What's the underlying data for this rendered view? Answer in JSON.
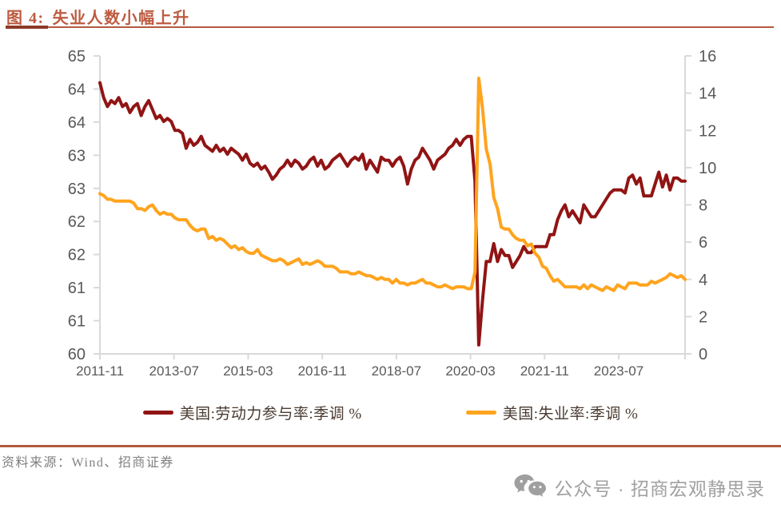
{
  "figure": {
    "label": "图 4:",
    "title": "失业人数小幅上升"
  },
  "source": {
    "text": "资料来源：Wind、招商证券"
  },
  "watermark": {
    "icon": "wechat-icon",
    "text": "公众号 · 招商宏观静思录"
  },
  "colors": {
    "title": "#BC5B40",
    "title_underline_dark": "#8C3A28",
    "title_underline_light": "#B25A3E",
    "separator": "#B25A3E",
    "series_participation": "#911414",
    "series_unemployment": "#FFA41E",
    "axis_text": "#595959",
    "axis_line": "#D9D9D9",
    "source_text": "#808080",
    "watermark_text": "#A0A0A0"
  },
  "chart_data": {
    "type": "line",
    "title": "失业人数小幅上升",
    "start_month": "2011-11",
    "frequency": "monthly",
    "legend_position": "bottom",
    "grid": false,
    "x_tick_labels": [
      "2011-11",
      "2013-07",
      "2015-03",
      "2016-11",
      "2018-07",
      "2020-03",
      "2021-11",
      "2023-07"
    ],
    "left_axis": {
      "min": 60,
      "max": 65,
      "tick_labels": [
        "65",
        "64",
        "64",
        "63",
        "63",
        "62",
        "62",
        "61",
        "61",
        "60"
      ]
    },
    "right_axis": {
      "min": 0,
      "max": 16,
      "tick_labels": [
        "16",
        "14",
        "12",
        "10",
        "8",
        "6",
        "4",
        "2",
        "0"
      ]
    },
    "series": [
      {
        "name": "美国:劳动力参与率:季调 %",
        "axis": "left",
        "color": "#911414",
        "values": [
          64.55,
          64.3,
          64.15,
          64.25,
          64.2,
          64.3,
          64.15,
          64.2,
          64.05,
          64.15,
          64.2,
          64.0,
          64.15,
          64.25,
          64.1,
          63.95,
          64.0,
          63.9,
          63.95,
          63.9,
          63.75,
          63.75,
          63.7,
          63.45,
          63.6,
          63.5,
          63.55,
          63.65,
          63.5,
          63.45,
          63.4,
          63.5,
          63.4,
          63.45,
          63.35,
          63.45,
          63.4,
          63.35,
          63.25,
          63.35,
          63.2,
          63.15,
          63.2,
          63.1,
          63.15,
          63.05,
          62.93,
          63.0,
          63.1,
          63.15,
          63.25,
          63.15,
          63.25,
          63.2,
          63.1,
          63.15,
          63.25,
          63.3,
          63.15,
          63.25,
          63.1,
          63.15,
          63.25,
          63.3,
          63.35,
          63.25,
          63.15,
          63.25,
          63.3,
          63.25,
          63.35,
          63.1,
          63.25,
          63.15,
          63.05,
          63.3,
          63.25,
          63.25,
          63.15,
          63.25,
          63.3,
          63.15,
          62.85,
          63.1,
          63.25,
          63.3,
          63.45,
          63.35,
          63.25,
          63.1,
          63.25,
          63.3,
          63.35,
          63.45,
          63.5,
          63.6,
          63.5,
          63.6,
          63.65,
          63.65,
          62.9,
          60.15,
          60.9,
          61.55,
          61.55,
          61.85,
          61.55,
          61.75,
          61.65,
          61.65,
          61.45,
          61.55,
          61.65,
          61.8,
          61.7,
          61.7,
          61.8,
          61.8,
          61.8,
          61.8,
          62.0,
          62.0,
          62.25,
          62.4,
          62.5,
          62.3,
          62.4,
          62.3,
          62.2,
          62.5,
          62.4,
          62.3,
          62.3,
          62.4,
          62.5,
          62.6,
          62.7,
          62.75,
          62.75,
          62.75,
          62.7,
          62.95,
          63.0,
          62.85,
          62.95,
          62.65,
          62.65,
          62.65,
          62.85,
          63.05,
          62.8,
          63.0,
          62.75,
          62.95,
          62.95,
          62.9,
          62.9
        ]
      },
      {
        "name": "美国:失业率:季调 %",
        "axis": "right",
        "color": "#FFA41E",
        "values": [
          8.6,
          8.5,
          8.3,
          8.3,
          8.2,
          8.2,
          8.2,
          8.2,
          8.2,
          8.1,
          7.8,
          7.8,
          7.7,
          7.9,
          8.0,
          7.7,
          7.5,
          7.6,
          7.5,
          7.5,
          7.3,
          7.2,
          7.2,
          7.2,
          6.9,
          6.7,
          6.6,
          6.7,
          6.7,
          6.2,
          6.3,
          6.1,
          6.2,
          6.1,
          5.9,
          5.7,
          5.8,
          5.6,
          5.7,
          5.5,
          5.4,
          5.4,
          5.6,
          5.3,
          5.2,
          5.1,
          5.0,
          5.0,
          5.1,
          5.0,
          4.8,
          4.9,
          5.0,
          5.1,
          4.8,
          4.9,
          4.8,
          4.9,
          5.0,
          4.9,
          4.7,
          4.7,
          4.7,
          4.6,
          4.4,
          4.4,
          4.4,
          4.3,
          4.3,
          4.4,
          4.3,
          4.2,
          4.2,
          4.1,
          4.0,
          4.1,
          4.0,
          4.0,
          3.8,
          4.0,
          3.8,
          3.8,
          3.7,
          3.8,
          3.8,
          3.9,
          4.0,
          3.8,
          3.8,
          3.7,
          3.6,
          3.6,
          3.7,
          3.6,
          3.5,
          3.6,
          3.6,
          3.6,
          3.5,
          3.5,
          4.4,
          14.8,
          13.2,
          11.0,
          10.2,
          8.4,
          7.8,
          6.8,
          6.7,
          6.7,
          6.4,
          6.2,
          6.1,
          6.1,
          5.8,
          5.9,
          5.4,
          5.2,
          4.7,
          4.6,
          4.2,
          3.9,
          4.0,
          3.8,
          3.6,
          3.6,
          3.6,
          3.6,
          3.5,
          3.7,
          3.5,
          3.7,
          3.6,
          3.5,
          3.4,
          3.6,
          3.5,
          3.4,
          3.7,
          3.6,
          3.5,
          3.8,
          3.8,
          3.8,
          3.7,
          3.7,
          3.7,
          3.9,
          3.8,
          3.9,
          4.0,
          4.1,
          4.3,
          4.2,
          4.1,
          4.2,
          4.0
        ]
      }
    ]
  }
}
